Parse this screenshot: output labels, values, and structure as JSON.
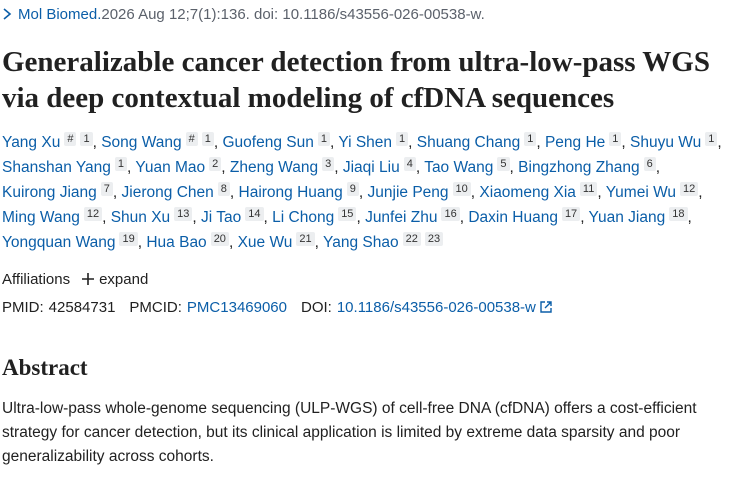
{
  "citation": {
    "journal": "Mol Biomed.",
    "details": " 2026 Aug 12;7(1):136. doi: 10.1186/s43556-026-00538-w."
  },
  "title": "Generalizable cancer detection from ultra-low-pass WGS via deep contextual modeling of cfDNA sequences",
  "authors": {
    "separator": ",",
    "list": [
      {
        "name": "Yang Xu",
        "sup": [
          "#",
          "1"
        ]
      },
      {
        "name": "Song Wang",
        "sup": [
          "#",
          "1"
        ]
      },
      {
        "name": "Guofeng Sun",
        "sup": [
          "1"
        ]
      },
      {
        "name": "Yi Shen",
        "sup": [
          "1"
        ]
      },
      {
        "name": "Shuang Chang",
        "sup": [
          "1"
        ]
      },
      {
        "name": "Peng He",
        "sup": [
          "1"
        ]
      },
      {
        "name": "Shuyu Wu",
        "sup": [
          "1"
        ]
      },
      {
        "name": "Shanshan Yang",
        "sup": [
          "1"
        ]
      },
      {
        "name": "Yuan Mao",
        "sup": [
          "2"
        ]
      },
      {
        "name": "Zheng Wang",
        "sup": [
          "3"
        ]
      },
      {
        "name": "Jiaqi Liu",
        "sup": [
          "4"
        ]
      },
      {
        "name": "Tao Wang",
        "sup": [
          "5"
        ]
      },
      {
        "name": "Bingzhong Zhang",
        "sup": [
          "6"
        ]
      },
      {
        "name": "Kuirong Jiang",
        "sup": [
          "7"
        ]
      },
      {
        "name": "Jierong Chen",
        "sup": [
          "8"
        ]
      },
      {
        "name": "Hairong Huang",
        "sup": [
          "9"
        ]
      },
      {
        "name": "Junjie Peng",
        "sup": [
          "10"
        ]
      },
      {
        "name": "Xiaomeng Xia",
        "sup": [
          "11"
        ]
      },
      {
        "name": "Yumei Wu",
        "sup": [
          "12"
        ]
      },
      {
        "name": "Ming Wang",
        "sup": [
          "12"
        ]
      },
      {
        "name": "Shun Xu",
        "sup": [
          "13"
        ]
      },
      {
        "name": "Ji Tao",
        "sup": [
          "14"
        ]
      },
      {
        "name": "Li Chong",
        "sup": [
          "15"
        ]
      },
      {
        "name": "Junfei Zhu",
        "sup": [
          "16"
        ]
      },
      {
        "name": "Daxin Huang",
        "sup": [
          "17"
        ]
      },
      {
        "name": "Yuan Jiang",
        "sup": [
          "18"
        ]
      },
      {
        "name": "Yongquan Wang",
        "sup": [
          "19"
        ]
      },
      {
        "name": "Hua Bao",
        "sup": [
          "20"
        ]
      },
      {
        "name": "Xue Wu",
        "sup": [
          "21"
        ]
      },
      {
        "name": "Yang Shao",
        "sup": [
          "22",
          "23"
        ]
      }
    ]
  },
  "affiliations": {
    "label": "Affiliations",
    "expand": "expand"
  },
  "ids": {
    "pmid_label": "PMID:",
    "pmid": "42584731",
    "pmcid_label": "PMCID:",
    "pmcid": "PMC13469060",
    "doi_label": "DOI:",
    "doi": "10.1186/s43556-026-00538-w"
  },
  "abstract": {
    "heading": "Abstract",
    "text": "Ultra-low-pass whole-genome sequencing (ULP-WGS) of cell-free DNA (cfDNA) offers a cost-efficient strategy for cancer detection, but its clinical application is limited by extreme data sparsity and poor generalizability across cohorts."
  }
}
